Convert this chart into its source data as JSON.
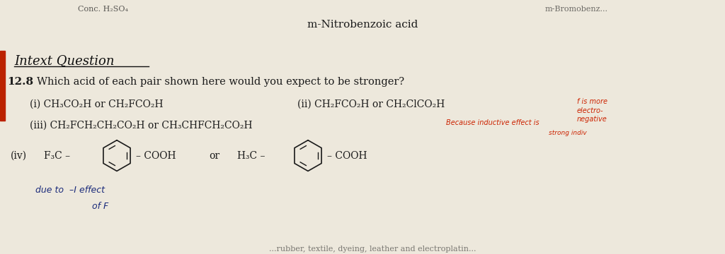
{
  "title": "m-Nitrobenzoic acid",
  "section_header": "Intext Question",
  "question_number": "12.8",
  "question_text": "Which acid of each pair shown here would you expect to be stronger?",
  "item_i": "(i) CH₃CO₂H or CH₂FCO₂H",
  "item_ii": "(ii) CH₂FCO₂H or CH₂ClCO₂H",
  "item_iii": "(iii) CH₂FCH₂CH₂CO₂H or CH₃CHFCH₂CO₂H",
  "item_iv_label": "(iv)",
  "item_iv_left": "F₃C",
  "item_iv_right": "H₃C",
  "item_iv_group": "COOH",
  "item_iv_or": "or",
  "annot_ii": "f is more\nelectro-\nnegative",
  "annot_iii": "Because inductive effect is\nstrong indiv",
  "handwritten1": "due to  –I effect",
  "handwritten2": "of F",
  "bottom_text": "rubber, textile, dyeing, leather and electroplatin",
  "top_left_text": "Conc. H₂SO₄",
  "top_right_text": "m-Bromobenz...",
  "bg_color": "#ede8dc",
  "text_color": "#1a1a1a",
  "red_bar_color": "#bb2200",
  "header_color": "#111111",
  "annot_color": "#cc2200",
  "hw_color": "#1a2a7a",
  "title_fontsize": 11,
  "header_fontsize": 13,
  "body_fontsize": 10,
  "annot_fontsize": 7,
  "small_fontsize": 8
}
